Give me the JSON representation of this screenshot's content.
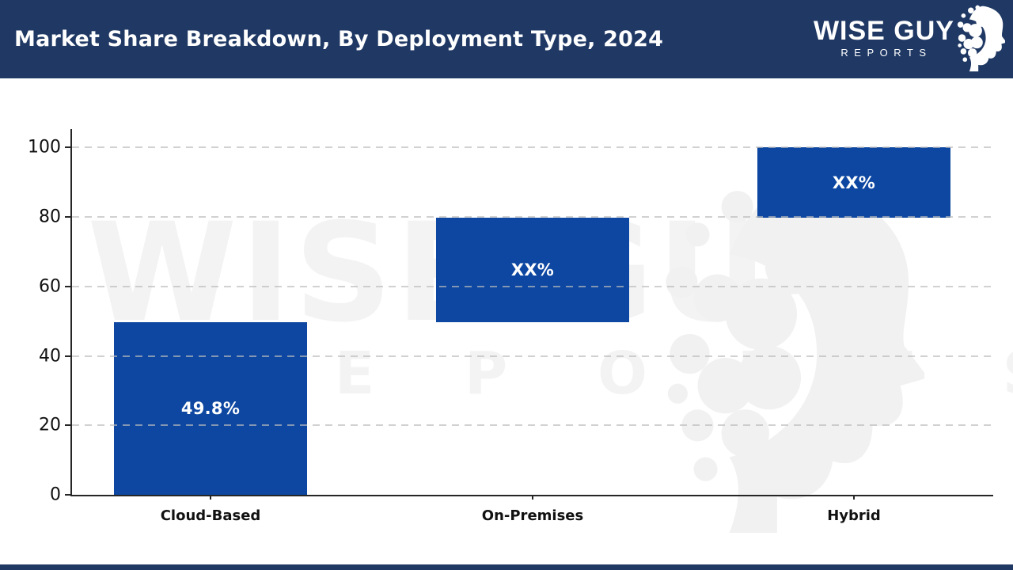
{
  "header": {
    "title": "Market Share Breakdown, By Deployment Type, 2024",
    "background_color": "#1F3864",
    "text_color": "#FFFFFF",
    "logo": {
      "line1": "WISE GUY",
      "line2": "REPORTS"
    }
  },
  "watermark": {
    "line1": "WISE GU",
    "line2": "R E P O R T S",
    "color": "#F3F3F3"
  },
  "chart_data": {
    "type": "bar",
    "subtype": "waterfall",
    "title": "Market Share Breakdown, By Deployment Type, 2024",
    "categories": [
      "Cloud-Based",
      "On-Premises",
      "Hybrid"
    ],
    "segments": [
      {
        "category": "Cloud-Based",
        "start": 0,
        "end": 49.8,
        "label": "49.8%"
      },
      {
        "category": "On-Premises",
        "start": 49.8,
        "end": 79.8,
        "label": "XX%"
      },
      {
        "category": "Hybrid",
        "start": 79.8,
        "end": 100,
        "label": "XX%"
      }
    ],
    "xlabel": "",
    "ylabel": "",
    "ylim": [
      0,
      100
    ],
    "yticks": [
      0,
      20,
      40,
      60,
      80,
      100
    ],
    "grid": {
      "axis": "y",
      "style": "dashed",
      "color": "#D9D9D9"
    },
    "bar_color": "#0D47A1",
    "bar_label_color": "#FFFFFF",
    "axis_color": "#262626",
    "tick_label_color": "#111111",
    "legend": null
  },
  "footer": {
    "background_color": "#1F3864"
  }
}
